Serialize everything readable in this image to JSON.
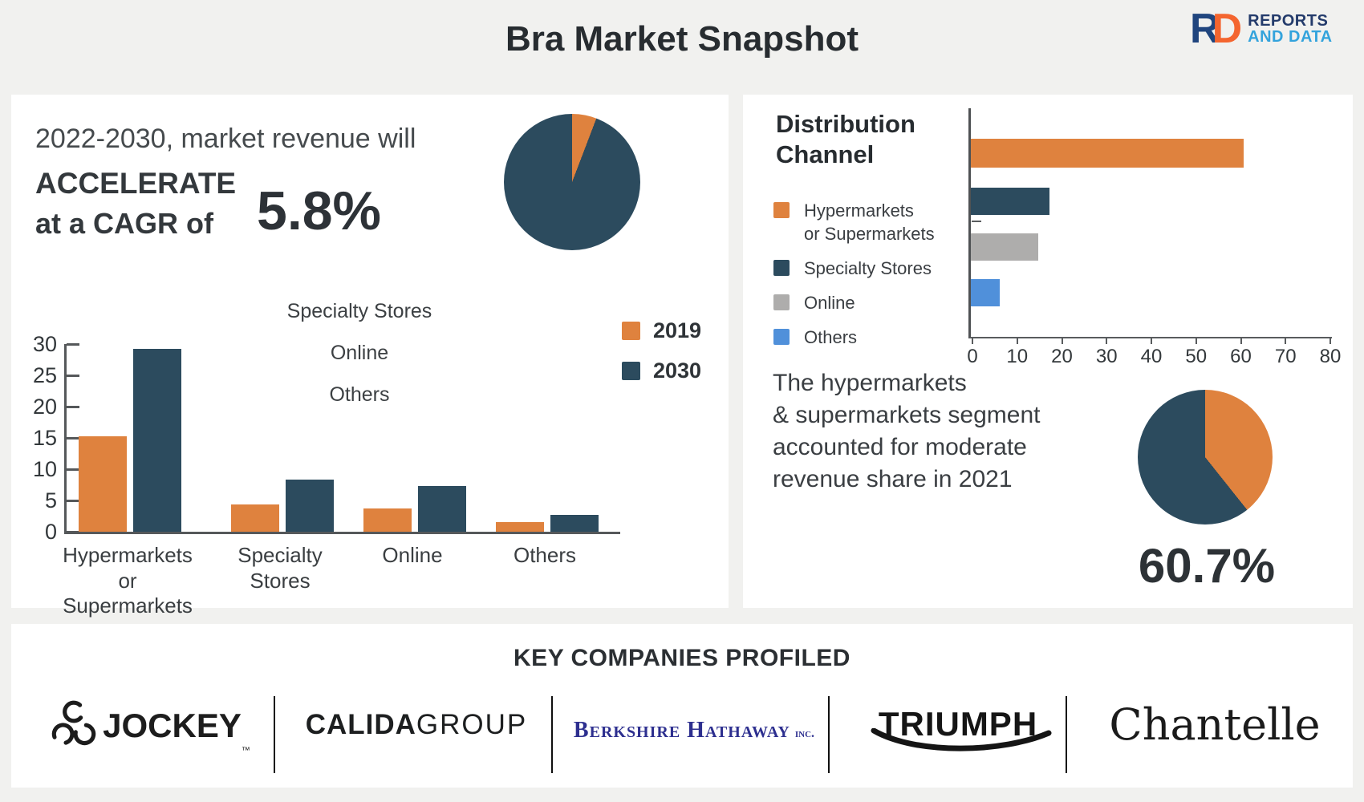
{
  "header": {
    "title": "Bra Market Snapshot",
    "logo": {
      "mark_r": "R",
      "mark_d": "D",
      "line1": "REPORTS",
      "line2": "AND DATA"
    }
  },
  "colors": {
    "orange": "#DF823E",
    "teal": "#2C4B5E",
    "gray": "#AEADAC",
    "blue": "#5090DA",
    "navy": "#2D2F8F"
  },
  "left_panel": {
    "headline": {
      "line1": "2022-2030, market revenue will",
      "line2": "ACCELERATE",
      "line3": "at a CAGR of",
      "value": "5.8%"
    }
  },
  "right_panel": {
    "title_line1": "Distribution",
    "title_line2": "Channel",
    "note_lines": [
      "The hypermarkets",
      "& supermarkets segment",
      "accounted for moderate",
      "revenue share in 2021"
    ],
    "share_value": "60.7%"
  },
  "bottom_panel": {
    "title": "KEY COMPANIES PROFILED",
    "jockey": "JOCKEY",
    "jockey_tm": "™",
    "calida_bold": "CALIDA",
    "calida_light": "GROUP",
    "berkshire": "Berkshire Hathaway",
    "berkshire_suffix": "inc.",
    "triumph": "TRIUMPH",
    "chantelle": "Chantelle"
  },
  "chart_data": [
    {
      "id": "cagr_pie",
      "type": "pie",
      "values": [
        5.8,
        94.2
      ],
      "colors": [
        "orange",
        "teal"
      ]
    },
    {
      "id": "market_revenue_grouped_bar",
      "type": "bar",
      "categories": [
        [
          "Hypermarkets",
          "or Supermarkets"
        ],
        [
          "Specialty",
          "Stores"
        ],
        [
          "Online"
        ],
        [
          "Others"
        ]
      ],
      "series": [
        {
          "name": "2019",
          "color": "orange",
          "values": [
            15.3,
            4.4,
            3.7,
            1.6
          ]
        },
        {
          "name": "2030",
          "color": "teal",
          "values": [
            29.2,
            8.3,
            7.3,
            2.7
          ]
        }
      ],
      "ylim": [
        0,
        30
      ],
      "yticks": [
        0,
        5,
        10,
        15,
        20,
        25,
        30
      ],
      "grid": false,
      "legend_position": "top-right",
      "floating_labels": [
        "Specialty Stores",
        "Online",
        "Others"
      ]
    },
    {
      "id": "distribution_channel_hbar",
      "type": "bar",
      "orientation": "horizontal",
      "title": "Distribution Channel",
      "categories": [
        "Hypermarkets or Supermarkets",
        "Specialty Stores",
        "Online",
        "Others"
      ],
      "values": [
        61,
        17.5,
        15,
        6.5
      ],
      "colors": [
        "orange",
        "teal",
        "gray",
        "blue"
      ],
      "xlim": [
        0,
        80
      ],
      "xticks": [
        0,
        10,
        20,
        30,
        40,
        50,
        60,
        70,
        80
      ],
      "legend": [
        {
          "lines": [
            "Hypermarkets",
            "or Supermarkets"
          ],
          "color": "orange"
        },
        {
          "lines": [
            "Specialty Stores"
          ],
          "color": "teal"
        },
        {
          "lines": [
            "Online"
          ],
          "color": "gray"
        },
        {
          "lines": [
            "Others"
          ],
          "color": "blue"
        }
      ]
    },
    {
      "id": "hypermarket_share_pie",
      "type": "pie",
      "values": [
        39.3,
        60.7
      ],
      "colors": [
        "orange",
        "teal"
      ],
      "label": "60.7%"
    }
  ]
}
